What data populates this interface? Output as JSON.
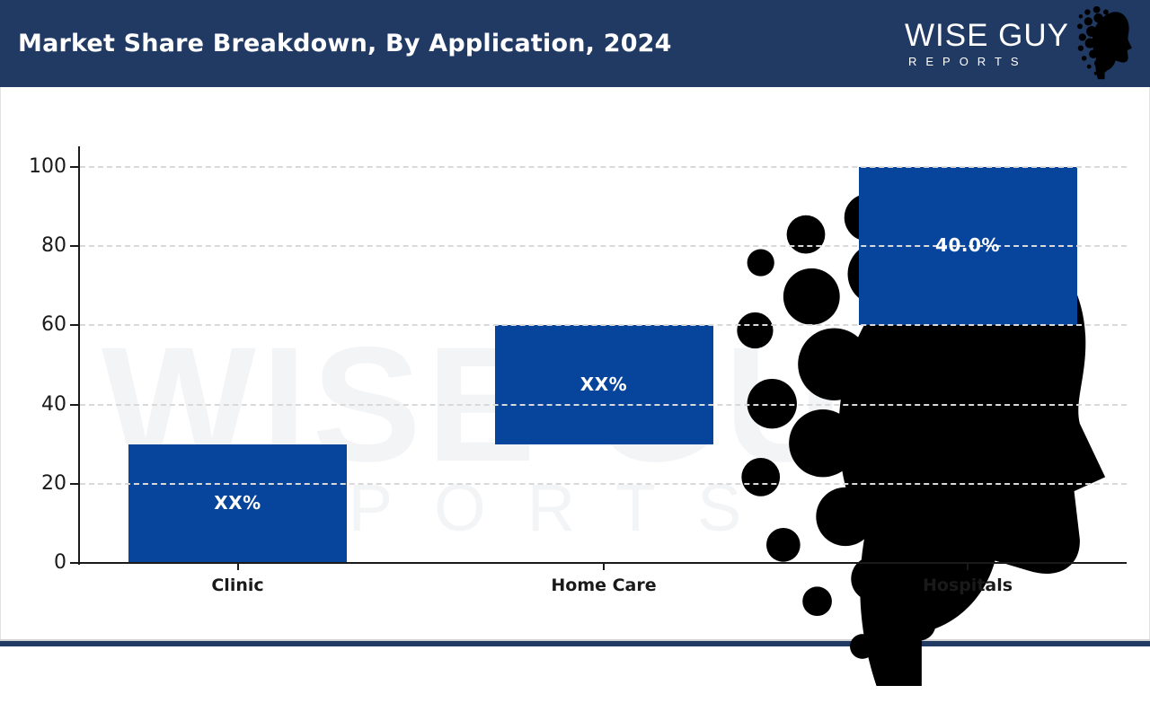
{
  "header": {
    "title": "Market Share Breakdown, By Application, 2024"
  },
  "logo": {
    "line1": "WISE GUY",
    "line2": "REPORTS"
  },
  "watermark": {
    "line1": "WISE GUY",
    "line2": "REPORTS"
  },
  "chart_data": {
    "type": "bar",
    "subtype": "floating-segment stacked breakdown (waterfall-style)",
    "title": "Market Share Breakdown, By Application, 2024",
    "categories": [
      "Clinic",
      "Home Care",
      "Hospitals"
    ],
    "values": [
      30,
      30,
      40
    ],
    "segments": [
      {
        "category": "Clinic",
        "from": 0,
        "to": 30,
        "label": "XX%"
      },
      {
        "category": "Home Care",
        "from": 30,
        "to": 60,
        "label": "XX%"
      },
      {
        "category": "Hospitals",
        "from": 60,
        "to": 100,
        "label": "40.0%"
      }
    ],
    "yticks": [
      0,
      20,
      40,
      60,
      80,
      100
    ],
    "ylim": [
      0,
      105
    ],
    "xlabel": "",
    "ylabel": "",
    "grid": "dashed horizontal gridlines, drawn over bars",
    "legend": "none",
    "bar_color": "#07449C",
    "label_color": "#FFFFFF",
    "axis_color": "#1A1A1A",
    "grid_color": "#D9D9D9"
  },
  "colors": {
    "header_bg": "#213A64",
    "footer_bg": "#213A64",
    "bar": "#07449C",
    "page_bg": "#FFFFFF"
  }
}
